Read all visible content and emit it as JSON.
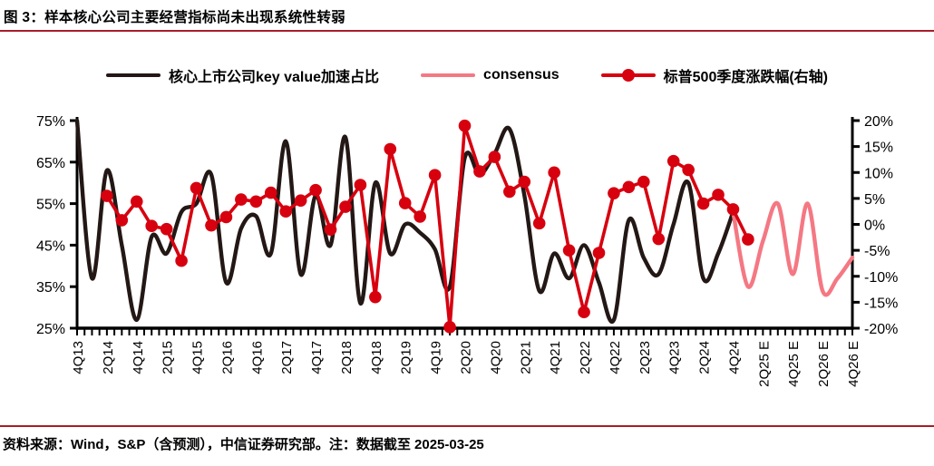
{
  "figure": {
    "title": "图 3：样本核心公司主要经营指标尚未出现系统性转弱",
    "source_note": "资料来源：Wind，S&P（含预测），中信证券研究部。注：数据截至 2025-03-25"
  },
  "colors": {
    "black_series": "#231815",
    "pink_series": "#F47883",
    "red_series": "#D7000F",
    "rule": "#A51E28",
    "axis": "#000000"
  },
  "legend": {
    "items": [
      {
        "label": "核心上市公司key value加速占比",
        "swatch": "black-line"
      },
      {
        "label": "consensus",
        "swatch": "pink-line"
      },
      {
        "label": "标普500季度涨跌幅(右轴)",
        "swatch": "red-line-dot"
      }
    ]
  },
  "chart_data": {
    "type": "line",
    "title": "",
    "x_tick_labels": [
      "4Q13",
      "2Q14",
      "4Q14",
      "2Q15",
      "4Q15",
      "2Q16",
      "4Q16",
      "2Q17",
      "4Q17",
      "2Q18",
      "4Q18",
      "2Q19",
      "4Q19",
      "2Q20",
      "4Q20",
      "2Q21",
      "4Q21",
      "2Q22",
      "4Q22",
      "2Q23",
      "4Q23",
      "2Q24",
      "4Q24",
      "2Q25 E",
      "4Q25 E",
      "2Q26 E",
      "4Q26 E"
    ],
    "quarters_per_label": 2,
    "total_quarter_span": 52,
    "left_axis": {
      "min": 25,
      "max": 75,
      "step": 10,
      "unit": "%",
      "labels": [
        "75%",
        "65%",
        "55%",
        "45%",
        "35%",
        "25%"
      ]
    },
    "right_axis": {
      "min": -20,
      "max": 20,
      "step": 5,
      "unit": "%",
      "labels": [
        "20%",
        "15%",
        "10%",
        "5%",
        "0%",
        "-5%",
        "-10%",
        "-15%",
        "-20%"
      ]
    },
    "grid": false,
    "legend_position": "top",
    "series": [
      {
        "name": "核心上市公司key value加速占比",
        "axis": "left",
        "style": "smooth-line",
        "color": "#231815",
        "start_quarter_index": 0,
        "quarterly_values_pct": [
          75,
          37,
          63,
          45,
          27,
          47,
          43,
          53,
          55,
          62,
          36,
          49,
          52,
          43,
          70,
          38,
          57,
          45,
          71,
          31,
          60,
          43,
          50,
          48,
          44,
          35,
          66,
          62,
          67,
          73,
          57,
          34,
          43,
          37,
          45,
          36,
          27,
          51,
          42,
          38,
          50,
          60,
          37,
          43,
          53
        ]
      },
      {
        "name": "consensus",
        "axis": "left",
        "style": "smooth-line",
        "color": "#F47883",
        "start_quarter_index": 44,
        "quarterly_values_pct": [
          53,
          35,
          46,
          55,
          38,
          55,
          34,
          37,
          42
        ]
      },
      {
        "name": "标普500季度涨跌幅(右轴)",
        "axis": "right",
        "style": "line-with-markers",
        "color": "#D7000F",
        "start_quarter_index": 2,
        "quarterly_values_pct": [
          5.5,
          0.8,
          4.4,
          -0.3,
          -0.9,
          -7.0,
          7.0,
          -0.2,
          1.4,
          4.8,
          4.4,
          6.1,
          2.5,
          4.6,
          6.6,
          -1.0,
          3.4,
          7.6,
          -14.0,
          14.5,
          4.1,
          1.5,
          9.5,
          -19.8,
          19.0,
          10.2,
          13.0,
          6.3,
          8.2,
          0.2,
          10.0,
          -5.0,
          -16.9,
          -5.5,
          6.0,
          7.2,
          8.2,
          -2.8,
          12.2,
          10.5,
          4.0,
          5.7,
          2.9,
          -2.9
        ]
      }
    ]
  }
}
